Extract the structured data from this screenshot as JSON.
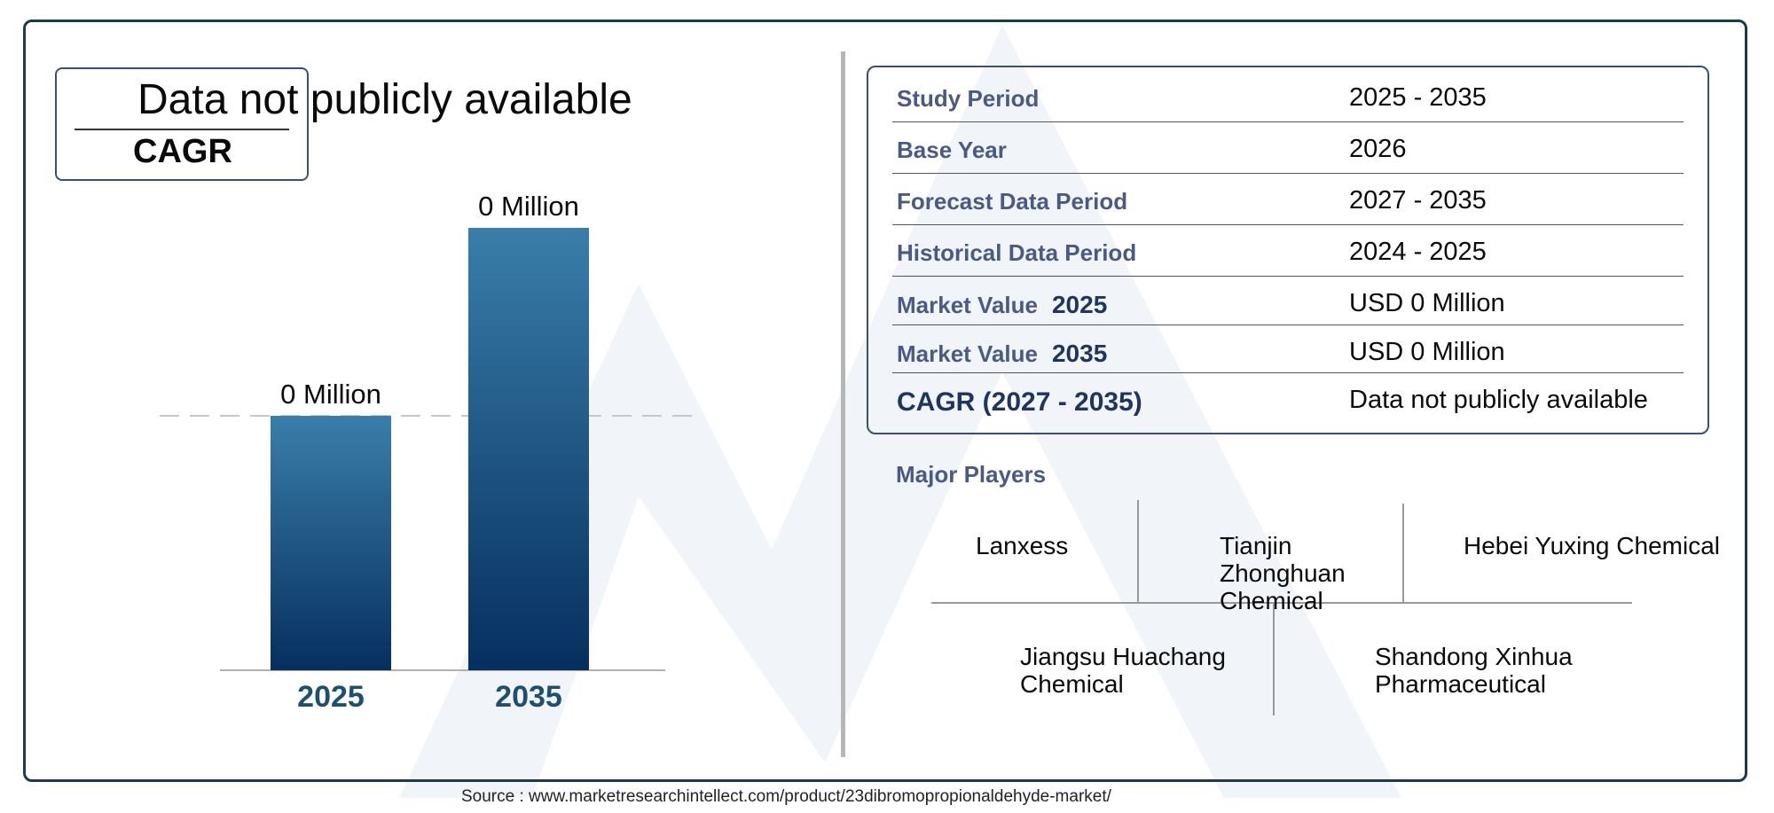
{
  "colors": {
    "frame": "#1d3b4a",
    "bar_top": "#3a7eaa",
    "bar_bottom": "#062f5e",
    "label_blue": "#4a5a85",
    "year_blue": "#1f4f6e",
    "watermark": "#eef3f8"
  },
  "cagr_card": {
    "value": "Data not publicly available",
    "label": "CAGR"
  },
  "chart_data": {
    "type": "bar",
    "categories": [
      "2025",
      "2035"
    ],
    "values": [
      0,
      0
    ],
    "data_labels": [
      "0 Million",
      "0 Million"
    ],
    "title": "",
    "xlabel": "",
    "ylabel": "",
    "grid": false,
    "reference_line": "dashed line at 2025 bar level"
  },
  "table": {
    "rows": [
      {
        "label": "Study Period",
        "year": "",
        "value": "2025 - 2035"
      },
      {
        "label": "Base Year",
        "year": "",
        "value": "2026"
      },
      {
        "label": "Forecast Data Period",
        "year": "",
        "value": "2027 - 2035"
      },
      {
        "label": "Historical Data Period",
        "year": "",
        "value": "2024 - 2025"
      },
      {
        "label": "Market Value",
        "year": "2025",
        "value": "USD 0 Million"
      },
      {
        "label": "Market Value",
        "year": "2035",
        "value": "USD 0 Million"
      },
      {
        "label": "CAGR (2027 - 2035)",
        "year": "",
        "value": "Data not publicly available"
      }
    ]
  },
  "major_players": {
    "title": "Major Players",
    "players": [
      "Lanxess",
      "Tianjin Zhonghuan Chemical",
      "Hebei Yuxing Chemical",
      "Jiangsu Huachang Chemical",
      "Shandong Xinhua Pharmaceutical"
    ]
  },
  "source": "Source : www.marketresearchintellect.com/product/23dibromopropionaldehyde-market/"
}
